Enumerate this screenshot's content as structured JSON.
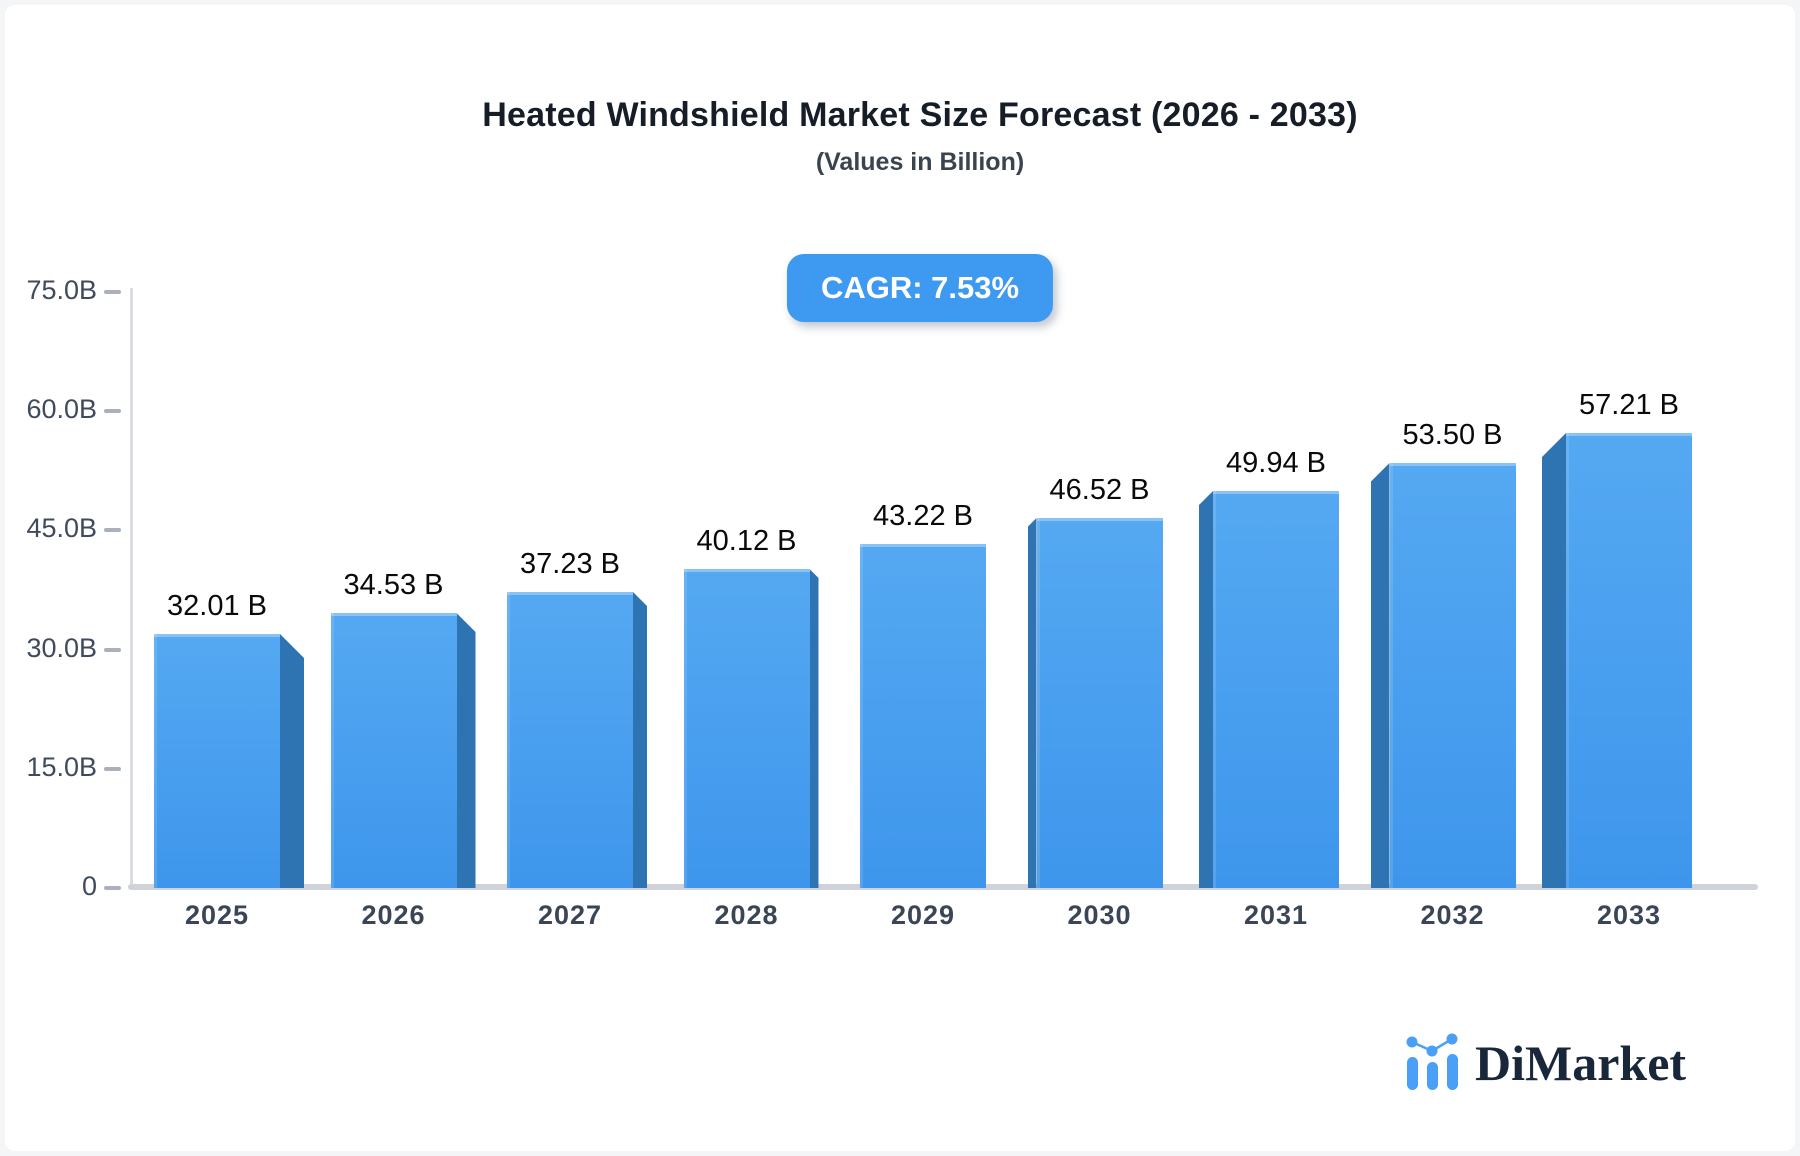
{
  "header": {
    "title": "Heated Windshield Market Size Forecast (2026 - 2033)",
    "subtitle": "(Values in Billion)",
    "badge": "CAGR: 7.53%"
  },
  "chart_data": {
    "type": "bar",
    "title": "Heated Windshield Market Size Forecast (2026 - 2033)",
    "subtitle": "(Values in Billion)",
    "annotation": "CAGR: 7.53%",
    "categories": [
      "2025",
      "2026",
      "2027",
      "2028",
      "2029",
      "2030",
      "2031",
      "2032",
      "2033"
    ],
    "values": [
      32.01,
      34.53,
      37.23,
      40.12,
      43.22,
      46.52,
      49.94,
      53.5,
      57.21
    ],
    "bar_labels": [
      "32.01 B",
      "34.53 B",
      "37.23 B",
      "40.12 B",
      "43.22 B",
      "46.52 B",
      "49.94 B",
      "53.50 B",
      "57.21 B"
    ],
    "unit": "B",
    "xlabel": "",
    "ylabel": "",
    "ylim": [
      0,
      75
    ],
    "yticks": [
      {
        "value": 75,
        "label": "75.0B"
      },
      {
        "value": 60,
        "label": "60.0B"
      },
      {
        "value": 45,
        "label": "45.0B"
      },
      {
        "value": 30,
        "label": "30.0B"
      },
      {
        "value": 15,
        "label": "15.0B"
      },
      {
        "value": 0,
        "label": "0"
      }
    ],
    "grid": false,
    "legend_position": "none",
    "style": "3d-perspective-bars",
    "colors": {
      "bar_face": "#3f9aef",
      "bar_face_gradient_top": "#55a9f2",
      "bar_side": "#2e74b3",
      "badge_background": "#3e9af0",
      "badge_text": "#ffffff",
      "axis_line": "#d9dce1",
      "baseline": "#cfd3d9",
      "tick_text": "#3f4b5c",
      "value_label_text": "#0a0a0a",
      "title_text": "#161d27"
    }
  },
  "footer": {
    "logo_text": "DiMarket",
    "logo_icon": "bar-line-chart-icon",
    "logo_icon_color": "#4aa0f6",
    "logo_text_color": "#19273b"
  }
}
